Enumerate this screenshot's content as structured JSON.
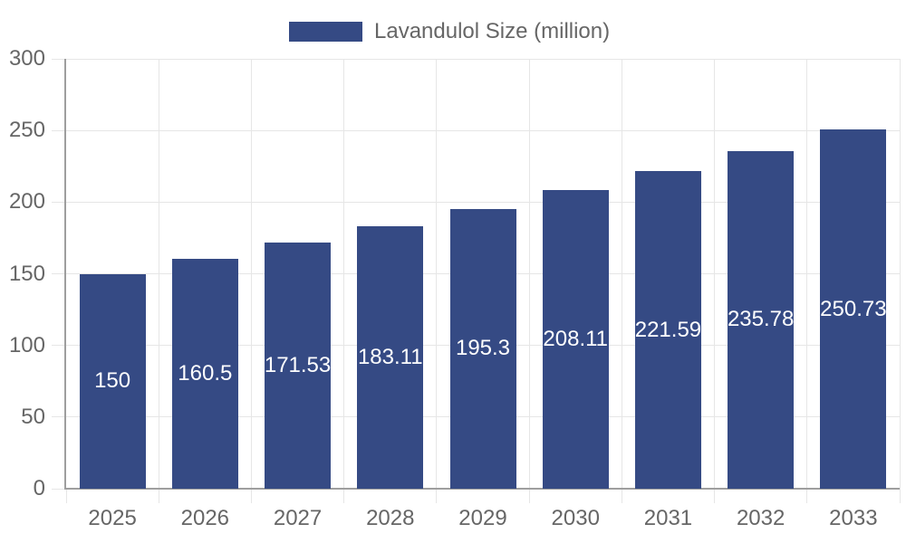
{
  "chart_data": {
    "type": "bar",
    "title": "",
    "categories": [
      "2025",
      "2026",
      "2027",
      "2028",
      "2029",
      "2030",
      "2031",
      "2032",
      "2033"
    ],
    "series": [
      {
        "name": "Lavandulol Size (million)",
        "values": [
          150,
          160.5,
          171.53,
          183.11,
          195.3,
          208.11,
          221.59,
          235.78,
          250.73
        ]
      }
    ],
    "value_labels": [
      "150",
      "160.5",
      "171.53",
      "183.11",
      "195.3",
      "208.11",
      "221.59",
      "235.78",
      "250.73"
    ],
    "xlabel": "",
    "ylabel": "",
    "ylim": [
      0,
      300
    ],
    "ytick_labels": [
      "0",
      "50",
      "100",
      "150",
      "200",
      "250",
      "300"
    ],
    "ytick_values": [
      0,
      50,
      100,
      150,
      200,
      250,
      300
    ],
    "grid": true,
    "legend_position": "top-center",
    "colors": {
      "bar": "#354a84",
      "axis_label": "#666666",
      "grid_line": "#e6e6e6",
      "axis_line": "#9e9e9e",
      "value_label": "#ffffff",
      "background": "#ffffff"
    }
  }
}
